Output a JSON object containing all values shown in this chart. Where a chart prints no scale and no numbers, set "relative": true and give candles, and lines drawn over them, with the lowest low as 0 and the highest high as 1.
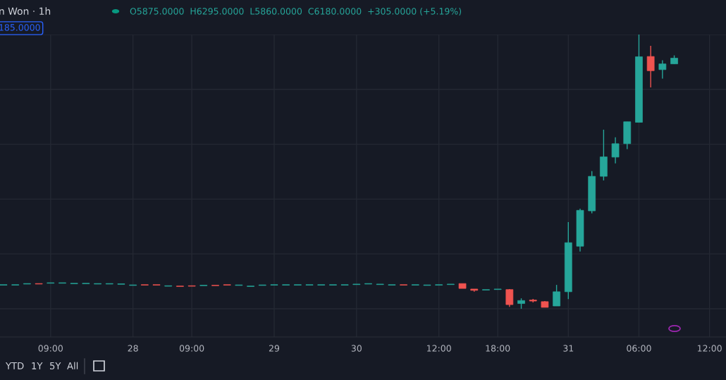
{
  "chart_data": {
    "type": "candlestick",
    "title": "n Won · 1h",
    "relative": true,
    "categories": [
      null,
      null,
      null,
      null,
      "09:00",
      null,
      null,
      null,
      null,
      null,
      null,
      "28",
      null,
      null,
      null,
      null,
      "09:00",
      null,
      null,
      null,
      null,
      null,
      null,
      "29",
      null,
      null,
      null,
      null,
      null,
      null,
      "30",
      null,
      null,
      null,
      null,
      null,
      null,
      "12:00",
      null,
      null,
      null,
      null,
      "18:00",
      null,
      null,
      null,
      null,
      null,
      "31",
      null,
      null,
      null,
      null,
      null,
      "06:00",
      null,
      null,
      null,
      null,
      null,
      "12:00"
    ],
    "ohlc": [
      [
        0.086,
        0.088,
        0.086,
        0.088
      ],
      [
        0.086,
        0.088,
        0.086,
        0.088
      ],
      [
        0.09,
        0.092,
        0.09,
        0.092
      ],
      [
        0.092,
        0.092,
        0.09,
        0.09
      ],
      [
        0.093,
        0.095,
        0.093,
        0.095
      ],
      [
        0.093,
        0.095,
        0.093,
        0.095
      ],
      [
        0.091,
        0.093,
        0.091,
        0.093
      ],
      [
        0.091,
        0.093,
        0.091,
        0.093
      ],
      [
        0.09,
        0.092,
        0.09,
        0.092
      ],
      [
        0.09,
        0.092,
        0.09,
        0.092
      ],
      [
        0.089,
        0.091,
        0.089,
        0.091
      ],
      [
        0.085,
        0.087,
        0.085,
        0.087
      ],
      [
        0.088,
        0.088,
        0.086,
        0.086
      ],
      [
        0.088,
        0.088,
        0.086,
        0.086
      ],
      [
        0.082,
        0.084,
        0.082,
        0.084
      ],
      [
        0.083,
        0.083,
        0.081,
        0.081
      ],
      [
        0.084,
        0.084,
        0.082,
        0.082
      ],
      [
        0.084,
        0.086,
        0.084,
        0.086
      ],
      [
        0.086,
        0.086,
        0.084,
        0.084
      ],
      [
        0.088,
        0.088,
        0.086,
        0.086
      ],
      [
        0.085,
        0.087,
        0.085,
        0.087
      ],
      [
        0.081,
        0.083,
        0.081,
        0.083
      ],
      [
        0.085,
        0.087,
        0.085,
        0.087
      ],
      [
        0.086,
        0.088,
        0.086,
        0.088
      ],
      [
        0.086,
        0.088,
        0.086,
        0.088
      ],
      [
        0.086,
        0.088,
        0.086,
        0.088
      ],
      [
        0.086,
        0.088,
        0.086,
        0.088
      ],
      [
        0.086,
        0.088,
        0.086,
        0.088
      ],
      [
        0.086,
        0.088,
        0.086,
        0.088
      ],
      [
        0.086,
        0.088,
        0.086,
        0.088
      ],
      [
        0.088,
        0.09,
        0.088,
        0.09
      ],
      [
        0.09,
        0.092,
        0.09,
        0.092
      ],
      [
        0.088,
        0.09,
        0.088,
        0.09
      ],
      [
        0.086,
        0.088,
        0.086,
        0.088
      ],
      [
        0.088,
        0.088,
        0.086,
        0.086
      ],
      [
        0.086,
        0.088,
        0.086,
        0.088
      ],
      [
        0.085,
        0.087,
        0.085,
        0.087
      ],
      [
        0.086,
        0.088,
        0.086,
        0.088
      ],
      [
        0.088,
        0.09,
        0.088,
        0.09
      ],
      [
        0.092,
        0.092,
        0.074,
        0.074
      ],
      [
        0.072,
        0.072,
        0.062,
        0.067
      ],
      [
        0.068,
        0.07,
        0.068,
        0.07
      ],
      [
        0.07,
        0.072,
        0.07,
        0.072
      ],
      [
        0.07,
        0.072,
        0.007,
        0.015
      ],
      [
        0.019,
        0.038,
        0.0,
        0.03
      ],
      [
        0.032,
        0.036,
        0.023,
        0.028
      ],
      [
        0.026,
        0.028,
        0.005,
        0.005
      ],
      [
        0.01,
        0.087,
        0.01,
        0.062
      ],
      [
        0.062,
        0.316,
        0.035,
        0.241
      ],
      [
        0.228,
        0.365,
        0.209,
        0.359
      ],
      [
        0.357,
        0.502,
        0.348,
        0.483
      ],
      [
        0.483,
        0.653,
        0.468,
        0.554
      ],
      [
        0.553,
        0.625,
        0.53,
        0.602
      ],
      [
        0.602,
        0.682,
        0.582,
        0.682
      ],
      [
        0.68,
        1.0,
        0.68,
        0.919
      ],
      [
        0.92,
        0.959,
        0.807,
        0.868
      ],
      [
        0.872,
        0.906,
        0.839,
        0.893
      ],
      [
        0.893,
        0.924,
        0.893,
        0.914
      ],
      null,
      null,
      null
    ],
    "colors": [
      "#26a69a",
      "#26a69a",
      "#26a69a",
      "#ef5350",
      "#26a69a",
      "#26a69a",
      "#26a69a",
      "#26a69a",
      "#26a69a",
      "#26a69a",
      "#26a69a",
      "#26a69a",
      "#ef5350",
      "#ef5350",
      "#26a69a",
      "#ef5350",
      "#ef5350",
      "#26a69a",
      "#ef5350",
      "#ef5350",
      "#26a69a",
      "#26a69a",
      "#26a69a",
      "#26a69a",
      "#26a69a",
      "#26a69a",
      "#26a69a",
      "#26a69a",
      "#26a69a",
      "#26a69a",
      "#26a69a",
      "#26a69a",
      "#26a69a",
      "#26a69a",
      "#ef5350",
      "#26a69a",
      "#26a69a",
      "#26a69a",
      "#26a69a",
      "#ef5350",
      "#ef5350",
      "#26a69a",
      "#26a69a",
      "#ef5350",
      "#26a69a",
      "#ef5350",
      "#ef5350",
      "#26a69a",
      "#26a69a",
      "#26a69a",
      "#26a69a",
      "#26a69a",
      "#26a69a",
      "#26a69a",
      "#26a69a",
      "#ef5350",
      "#26a69a",
      "#26a69a",
      null,
      null,
      null
    ],
    "grid": true,
    "annotations": [
      "O5875.0000  H6295.0000  L5860.0000  C6180.0000  +305.0000 (+5.19%)",
      "185.0000",
      "YTD",
      "1Y",
      "5Y",
      "All"
    ]
  }
}
